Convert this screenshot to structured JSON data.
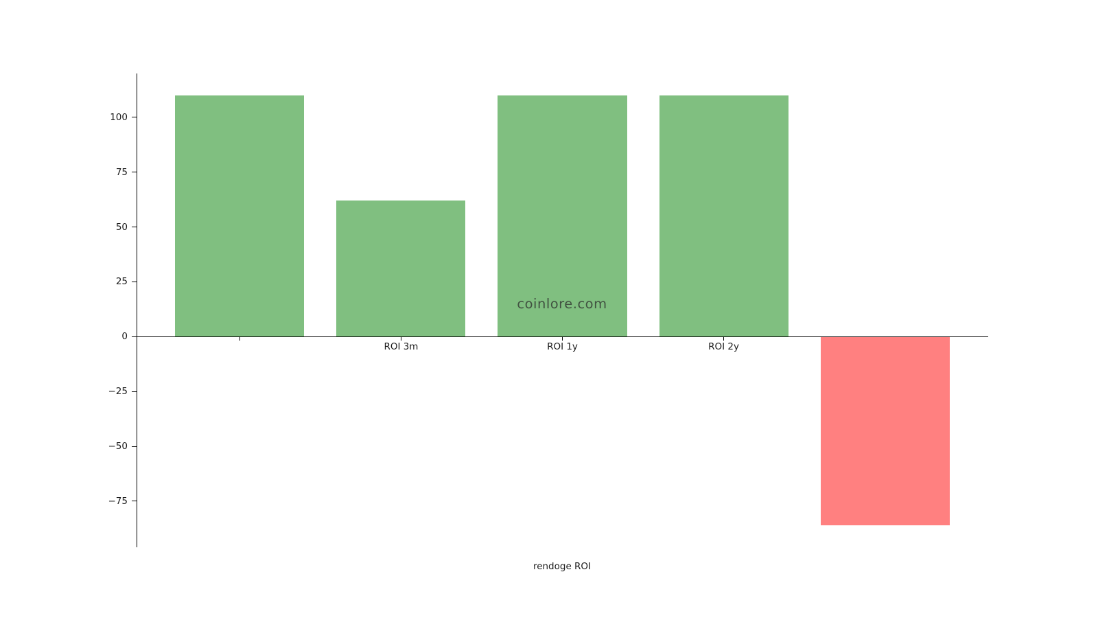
{
  "page": {
    "background_color": "#ffffff",
    "text_color": "#1a1a1a",
    "axis_color": "#000000"
  },
  "chart_data": {
    "type": "bar",
    "title": "",
    "xlabel": "rendoge ROI",
    "ylabel": "",
    "watermark": "coinlore.com",
    "categories": [
      "",
      "ROI 3m",
      "ROI 1y",
      "ROI 2y",
      ""
    ],
    "values": [
      110,
      62,
      110,
      110,
      -86
    ],
    "positive_color": "#80bf80",
    "negative_color": "#ff8080",
    "yticks": [
      100,
      75,
      50,
      25,
      0,
      -25,
      -50,
      -75
    ],
    "ytick_labels": [
      "100",
      "75",
      "50",
      "25",
      "0",
      "−25",
      "−50",
      "−75"
    ],
    "ylim": [
      -96,
      120
    ],
    "xlim": [
      -0.64,
      4.64
    ],
    "bar_width": 0.8,
    "grid": false,
    "legend": null,
    "x_axis_position": "zero"
  }
}
